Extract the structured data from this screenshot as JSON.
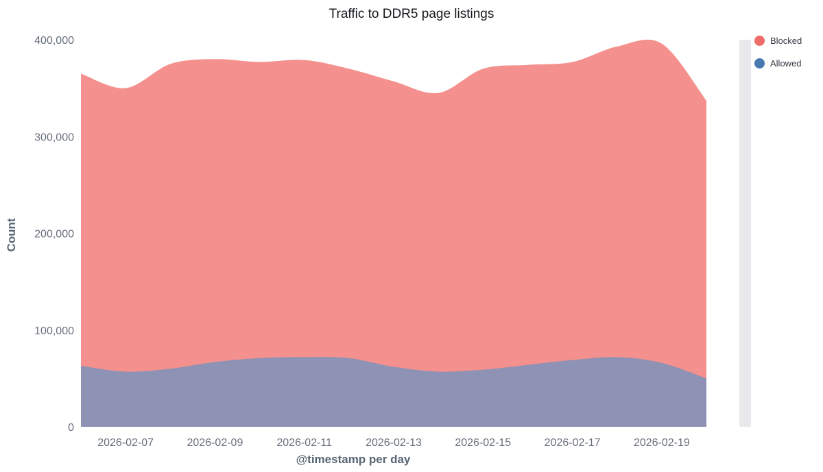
{
  "title": "Traffic to DDR5 page listings",
  "legend": {
    "items": [
      {
        "label": "Blocked",
        "color": "#EC6C68"
      },
      {
        "label": "Allowed",
        "color": "#4879B2"
      }
    ]
  },
  "chart_data": {
    "type": "area",
    "stacked": true,
    "title": "Traffic to DDR5 page listings",
    "xlabel": "@timestamp per day",
    "ylabel": "Count",
    "ylim": [
      0,
      400000
    ],
    "y_ticks": [
      0,
      100000,
      200000,
      300000,
      400000
    ],
    "x": [
      "2026-02-06",
      "2026-02-07",
      "2026-02-08",
      "2026-02-09",
      "2026-02-10",
      "2026-02-11",
      "2026-02-12",
      "2026-02-13",
      "2026-02-14",
      "2026-02-15",
      "2026-02-16",
      "2026-02-17",
      "2026-02-18",
      "2026-02-19",
      "2026-02-20"
    ],
    "x_tick_labels": [
      "2026-02-07",
      "2026-02-09",
      "2026-02-11",
      "2026-02-13",
      "2026-02-15",
      "2026-02-17",
      "2026-02-19"
    ],
    "series": [
      {
        "name": "Blocked",
        "color": "#EC6C68",
        "fill": "#F4908E",
        "values": [
          302000,
          293000,
          315000,
          313000,
          306000,
          307000,
          299000,
          295000,
          288000,
          311000,
          310000,
          308000,
          321000,
          330000,
          287000
        ]
      },
      {
        "name": "Allowed",
        "color": "#4879B2",
        "fill": "#8E92B4",
        "values": [
          63000,
          57000,
          60000,
          67000,
          71000,
          72000,
          71000,
          62000,
          57000,
          59000,
          64000,
          69000,
          72000,
          66000,
          50000
        ]
      }
    ],
    "legend_position": "top-right",
    "grid": false
  }
}
